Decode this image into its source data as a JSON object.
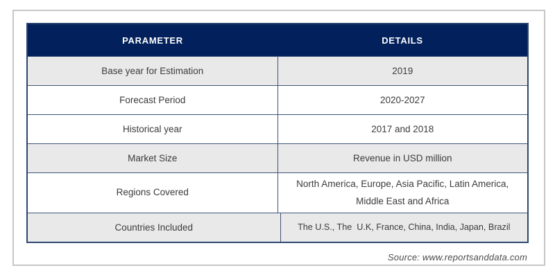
{
  "table": {
    "columns": [
      {
        "label": "PARAMETER"
      },
      {
        "label": "DETAILS"
      }
    ],
    "rows": [
      {
        "parameter": "Base year for Estimation",
        "details": "2019"
      },
      {
        "parameter": "Forecast Period",
        "details": "2020-2027"
      },
      {
        "parameter": "Historical year",
        "details": "2017 and 2018"
      },
      {
        "parameter": "Market Size",
        "details": "Revenue in USD million"
      },
      {
        "parameter": "Regions Covered",
        "details": "North America, Europe, Asia Pacific, Latin America, Middle East and Africa"
      },
      {
        "parameter": "Countries Included",
        "details": "The U.S., The  U.K, France, China, India, Japan, Brazil"
      }
    ]
  },
  "source": {
    "label": "Source: www.reportsanddata.com"
  },
  "colors": {
    "header_bg": "#02215c",
    "header_text": "#ffffff",
    "row_shaded_bg": "#e9e9e9",
    "row_plain_bg": "#ffffff",
    "cell_border": "#3e5377",
    "table_outer_border": "#2c4470",
    "outer_frame_border": "#c6c6c6",
    "body_text": "#3b3b3b",
    "source_text": "#4a4a4a"
  }
}
